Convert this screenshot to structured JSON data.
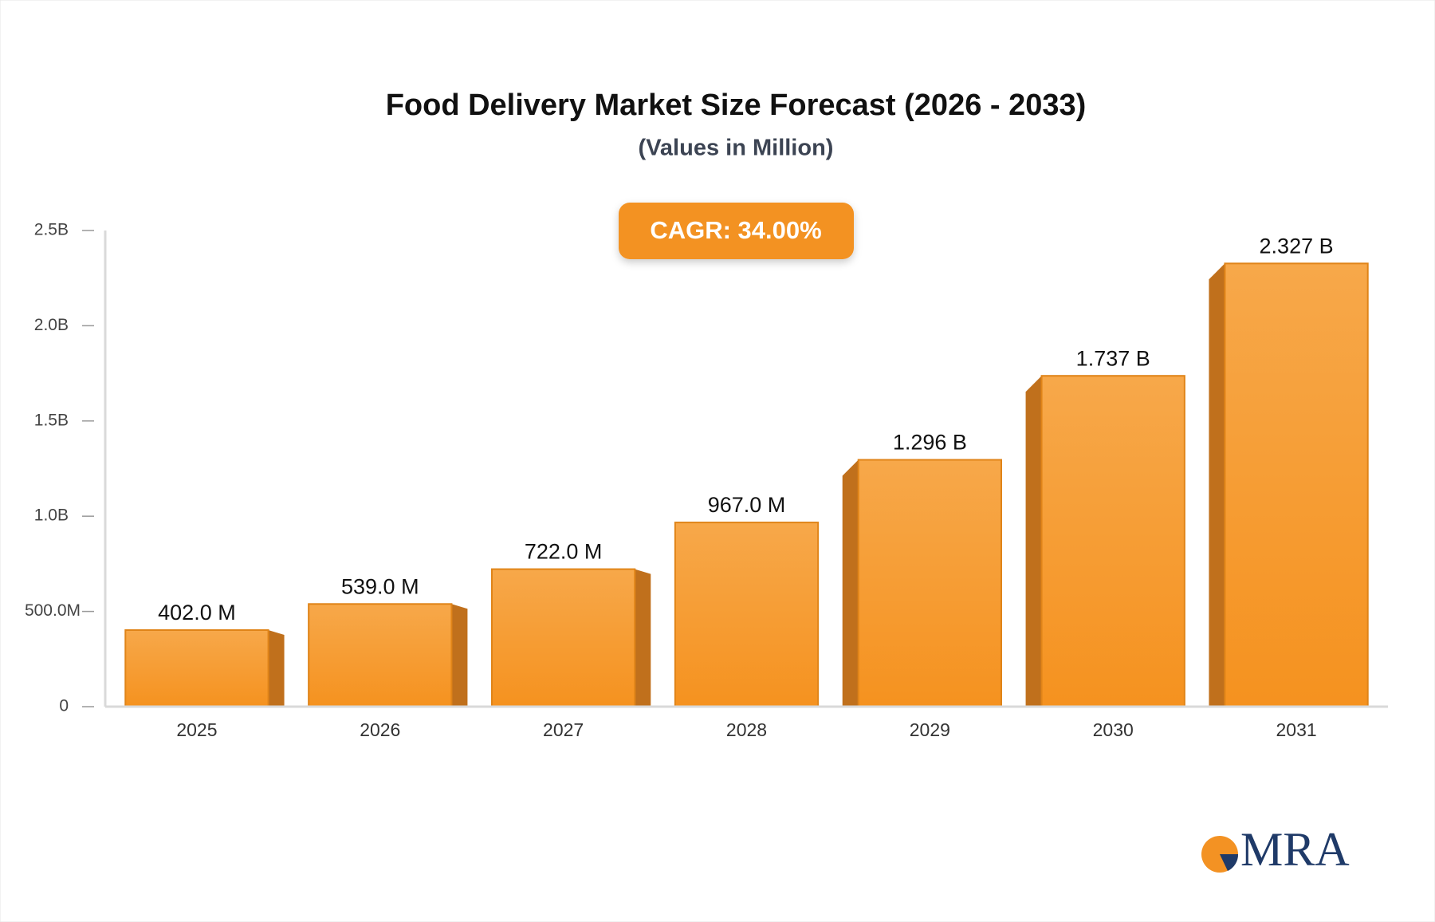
{
  "chart_data": {
    "type": "bar",
    "title": "Food Delivery Market Size Forecast (2026 - 2033)",
    "subtitle": "(Values in Million)",
    "annotation": "CAGR: 34.00%",
    "logo": "MRA",
    "categories": [
      "2025",
      "2026",
      "2027",
      "2028",
      "2029",
      "2030",
      "2031"
    ],
    "values": [
      402,
      539,
      722,
      967,
      1296,
      1737,
      2327
    ],
    "value_labels": [
      "402.0 M",
      "539.0 M",
      "722.0 M",
      "967.0 M",
      "1.296 B",
      "1.737 B",
      "2.327 B"
    ],
    "color": "#f7a03c",
    "ylim": [
      0,
      2500
    ],
    "yticks": [
      0,
      {
        "value": 500,
        "label": "500.0M"
      },
      {
        "value": 1000,
        "label": "1.0B"
      },
      {
        "value": 1500,
        "label": "1.5B"
      },
      {
        "value": 2000,
        "label": "2.0B"
      },
      {
        "value": 2500,
        "label": "2.5B"
      }
    ],
    "grid": false
  }
}
